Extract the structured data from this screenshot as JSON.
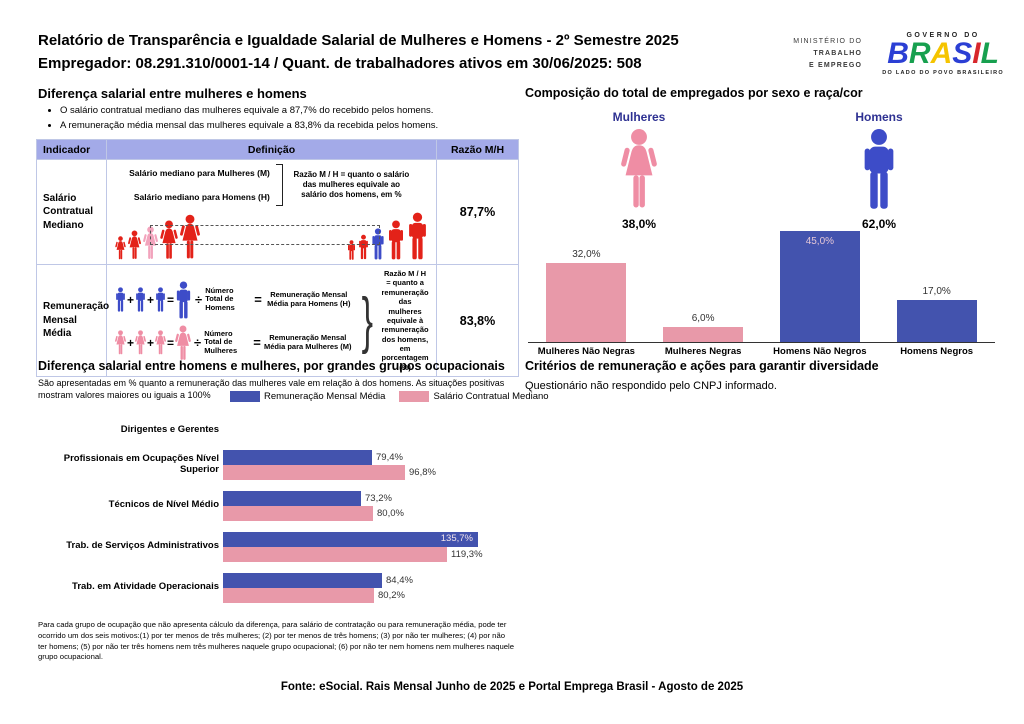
{
  "header": {
    "title_line1": "Relatório de Transparência e Igualdade Salarial de Mulheres e Homens - 2º Semestre 2025",
    "title_line2": "Empregador: 08.291.310/0001-14 / Quant. de trabalhadores ativos em 30/06/2025: 508",
    "ministry_logo": {
      "line1": "MINISTÉRIO DO",
      "line2": "TRABALHO",
      "line3": "E EMPREGO"
    },
    "gov_logo": {
      "top": "GOVERNO DO",
      "brand": "BRASIL",
      "bottom": "DO LADO DO POVO BRASILEIRO"
    }
  },
  "salary_gap_section": {
    "title": "Diferença salarial entre mulheres e homens",
    "bullets": [
      "O salário contratual mediano das mulheres equivale a 87,7% do recebido pelos homens.",
      "A remuneração média mensal das mulheres equivale a 83,8% da recebida pelos homens."
    ],
    "table": {
      "headers": [
        "Indicador",
        "Definição",
        "Razão M/H"
      ],
      "row1": {
        "indicator": "Salário Contratual Mediano",
        "ratio": "87,7%",
        "label_women": "Salário mediano para Mulheres (M)",
        "label_men": "Salário mediano para Homens (H)",
        "note": "Razão M / H = quanto o salário das mulheres equivale ao salário dos homens, em %"
      },
      "row2": {
        "indicator": "Remuneração Mensal Média",
        "ratio": "83,8%",
        "men_label": "Número Total de Homens",
        "men_result": "Remuneração Mensal Média para Homens (H)",
        "women_label": "Número Total de Mulheres",
        "women_result": "Remuneração Mensal Média para Mulheres (M)",
        "note": "Razão M / H = quanto a remuneração das mulheres equivale à remuneração dos homens, em porcentagem (%)"
      }
    }
  },
  "composition_section": {
    "title": "Composição do total de empregados por sexo e raça/cor",
    "women_label": "Mulheres",
    "women_pct": "38,0%",
    "men_label": "Homens",
    "men_pct": "62,0%"
  },
  "occupational_section": {
    "title": "Diferença salarial entre homens e mulheres, por grandes grupos ocupacionais",
    "subtitle": "São apresentadas em % quanto a remuneração das mulheres vale em relação à dos homens. As situações positivas mostram valores maiores ou iguais a 100%",
    "footnote": "Para cada grupo de ocupação que não apresenta cálculo da diferença, para salário de contratação ou para remuneração média, pode ter ocorrido um dos seis motivos:(1) por ter menos de três mulheres; (2) por ter menos de três homens; (3) por não ter mulheres; (4) por não ter homens; (5) por não ter três homens nem três mulheres naquele grupo ocupacional; (6) por não ter nem homens nem mulheres naquele grupo ocupacional."
  },
  "criteria_section": {
    "title": "Critérios de remuneração e ações para garantir diversidade",
    "body": "Questionário não respondido pelo CNPJ informado."
  },
  "footer": {
    "source": "Fonte: eSocial. Rais Mensal Junho de 2025 e Portal Emprega Brasil - Agosto de 2025"
  },
  "colors": {
    "blue": "#4353ae",
    "pink": "#e899a9",
    "table_header_bg": "#a3aae8",
    "navy": "#2e3192",
    "red_figure": "#e32219",
    "pink_highlight": "#f2a3bc",
    "blue_highlight": "#3d4cc8",
    "women_icon": "#ef8da4",
    "men_icon": "#3d4cc8",
    "brasil_letters": [
      "#2b3fd4",
      "#17a04f",
      "#f5c400",
      "#2b3fd4",
      "#d7262c",
      "#17a04f"
    ]
  },
  "chart_data": [
    {
      "type": "bar",
      "title": "Composição do total de empregados por sexo e raça/cor",
      "categories": [
        "Mulheres Não Negras",
        "Mulheres Negras",
        "Homens Não Negros",
        "Homens Negros"
      ],
      "values": [
        32.0,
        6.0,
        45.0,
        17.0
      ],
      "labels": [
        "32,0%",
        "6,0%",
        "45,0%",
        "17,0%"
      ],
      "colors": [
        "#e899a9",
        "#e899a9",
        "#4353ae",
        "#4353ae"
      ],
      "xlabel": "",
      "ylabel": "",
      "ylim": [
        0,
        47
      ],
      "grid": false,
      "legend": false
    },
    {
      "type": "bar-horizontal-grouped",
      "title": "Diferença salarial entre homens e mulheres, por grandes grupos ocupacionais",
      "categories": [
        "Dirigentes e Gerentes",
        "Profissionais em Ocupações Nível Superior",
        "Técnicos de Nível Médio",
        "Trab. de Serviços Administrativos",
        "Trab. em Atividade Operacionais"
      ],
      "series": [
        {
          "name": "Remuneração Mensal Média",
          "color": "#4353ae",
          "values": [
            null,
            79.4,
            73.2,
            135.7,
            84.4
          ],
          "labels": [
            "",
            "79,4%",
            "73,2%",
            "135,7%",
            "84,4%"
          ]
        },
        {
          "name": "Salário Contratual Mediano",
          "color": "#e899a9",
          "values": [
            null,
            96.8,
            80.0,
            119.3,
            80.2
          ],
          "labels": [
            "",
            "96,8%",
            "80,0%",
            "119,3%",
            "80,2%"
          ]
        }
      ],
      "xlim": [
        0,
        140
      ],
      "legend_position": "top",
      "grid": false
    }
  ]
}
